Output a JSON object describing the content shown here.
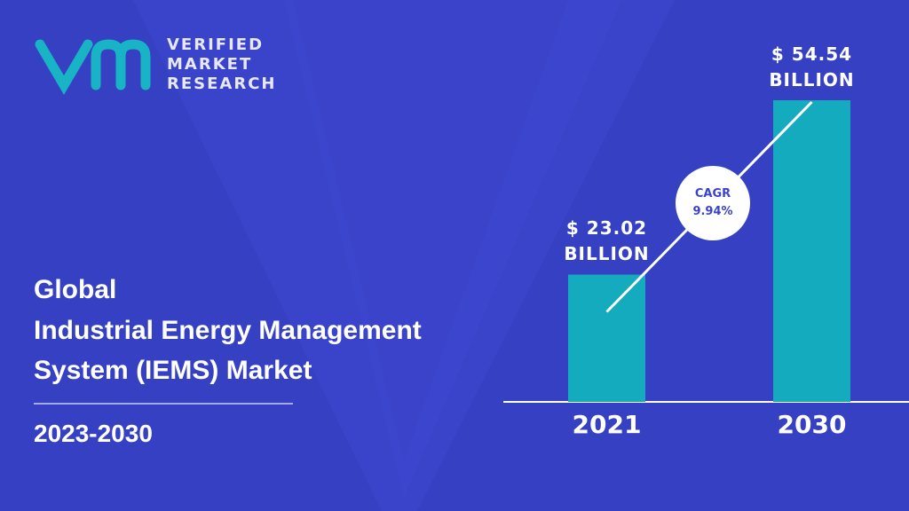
{
  "logo": {
    "lines": [
      "VERIFIED",
      "MARKET",
      "RESEARCH"
    ]
  },
  "headline": {
    "lines": [
      "Global",
      "Industrial Energy Management",
      "System (IEMS) Market"
    ]
  },
  "period": "2023-2030",
  "chart_data": {
    "type": "bar",
    "categories": [
      "2021",
      "2030"
    ],
    "values": [
      23.02,
      54.54
    ],
    "value_labels": [
      "$ 23.02 BILLION",
      "$ 54.54 BILLION"
    ],
    "color": "#14abbf",
    "annotation": "CAGR 9.94%"
  }
}
